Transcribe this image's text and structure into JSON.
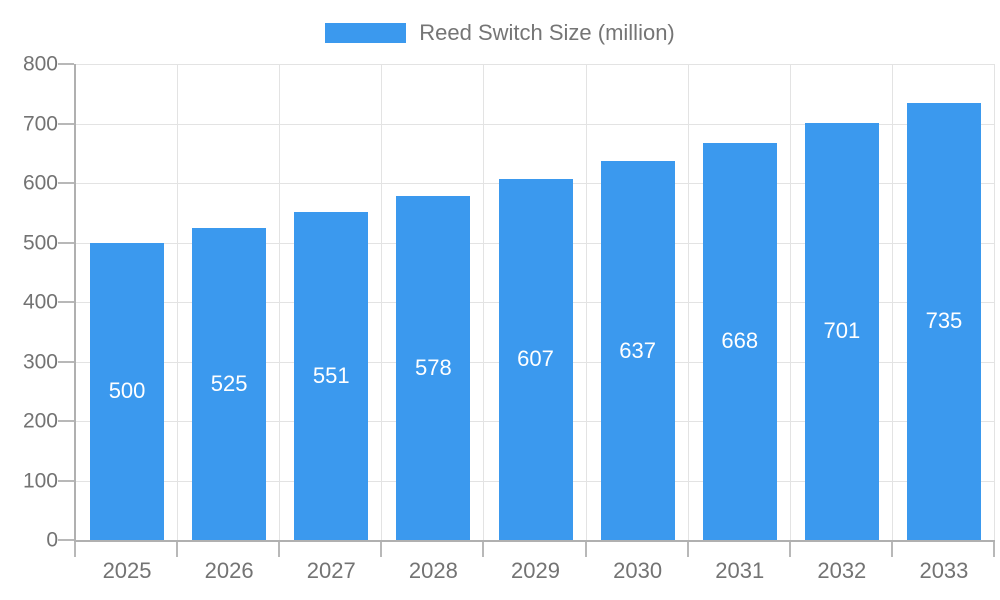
{
  "legend": {
    "label": "Reed Switch Size (million)"
  },
  "chart_data": {
    "type": "bar",
    "title": "",
    "categories": [
      "2025",
      "2026",
      "2027",
      "2028",
      "2029",
      "2030",
      "2031",
      "2032",
      "2033"
    ],
    "series": [
      {
        "name": "Reed Switch Size (million)",
        "values": [
          500,
          525,
          551,
          578,
          607,
          637,
          668,
          701,
          735
        ]
      }
    ],
    "xlabel": "",
    "ylabel": "",
    "ylim": [
      0,
      800
    ],
    "ytick_step": 100,
    "yticks": [
      0,
      100,
      200,
      300,
      400,
      500,
      600,
      700,
      800
    ],
    "grid": true,
    "legend_position": "top",
    "value_labels": "inside-center-white"
  },
  "colors": {
    "bar": "#3b99ee",
    "bar_label": "#ffffff",
    "axis": "#b0b0b0",
    "tick": "#b8b8b8",
    "gridline": "#e3e3e3",
    "axis_text": "#737373",
    "legend_text": "#757575",
    "background": "#ffffff"
  }
}
